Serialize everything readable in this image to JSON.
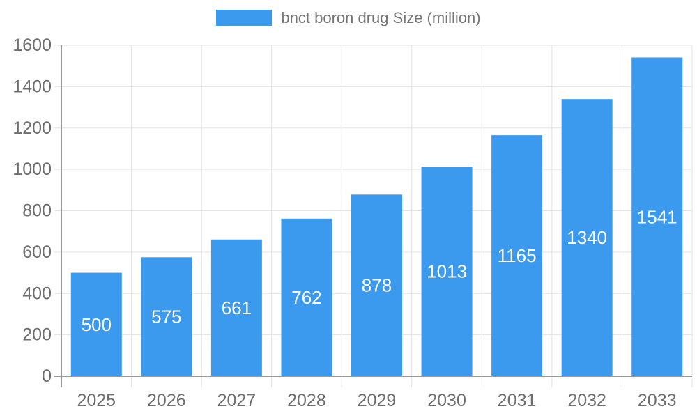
{
  "legend": {
    "label": "bnct boron drug Size (million)"
  },
  "colors": {
    "bar": "#3B99EE",
    "grid": "#E3E3E3",
    "axis": "#999999",
    "axis_label": "#6E6E6E",
    "legend_text": "#757575",
    "bar_label": "#FFFFFF",
    "background": "#FFFFFF"
  },
  "chart_data": {
    "type": "bar",
    "title": "",
    "categories": [
      "2025",
      "2026",
      "2027",
      "2028",
      "2029",
      "2030",
      "2031",
      "2032",
      "2033"
    ],
    "values": [
      500,
      575,
      661,
      762,
      878,
      1013,
      1165,
      1340,
      1541
    ],
    "series_name": "bnct boron drug Size (million)",
    "xlabel": "",
    "ylabel": "",
    "ylim": [
      0,
      1600
    ],
    "ytick_step": 200,
    "ytick_labels": [
      "0",
      "200",
      "400",
      "600",
      "800",
      "1000",
      "1200",
      "1400",
      "1600"
    ],
    "grid": true,
    "legend_position": "top-center",
    "bar_label_position": "inside-center"
  }
}
